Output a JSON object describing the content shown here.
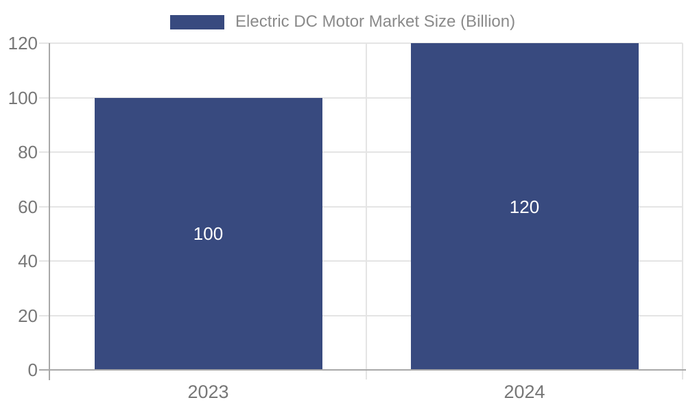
{
  "chart_data": {
    "type": "bar",
    "title": "Electric DC Motor Market Size (Billion)",
    "categories": [
      "2023",
      "2024"
    ],
    "series": [
      {
        "name": "Electric DC Motor Market Size (Billion)",
        "values": [
          100,
          120
        ]
      }
    ],
    "data_labels": [
      "100",
      "120"
    ],
    "ylim": [
      0,
      120
    ],
    "yticks": [
      0,
      20,
      40,
      60,
      80,
      100,
      120
    ],
    "grid": true,
    "legend_position": "top-center"
  },
  "colors": {
    "bar": "#384A7F",
    "grid": "#E4E4E4",
    "axis": "#A8A8A8",
    "tick_label": "#777777",
    "legend_text": "#8A8A8A",
    "data_label": "#FFFFFF",
    "background": "#FFFFFF"
  }
}
